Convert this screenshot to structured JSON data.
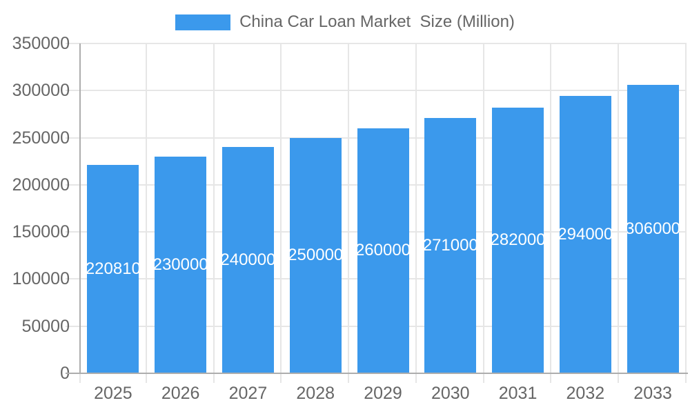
{
  "chart_data": {
    "type": "bar",
    "title": "China Car Loan Market  Size (Million)",
    "categories": [
      "2025",
      "2026",
      "2027",
      "2028",
      "2029",
      "2030",
      "2031",
      "2032",
      "2033"
    ],
    "series": [
      {
        "name": "China Car Loan Market  Size (Million)",
        "values": [
          220810,
          230000,
          240000,
          250000,
          260000,
          271000,
          282000,
          294000,
          306000
        ],
        "value_labels": [
          "220810",
          "230000",
          "240000",
          "250000",
          "260000",
          "271000",
          "282000",
          "294000",
          "306000"
        ]
      }
    ],
    "xlabel": "",
    "ylabel": "",
    "ylim": [
      0,
      350000
    ],
    "ytick_step": 50000,
    "yticks": [
      0,
      50000,
      100000,
      150000,
      200000,
      250000,
      300000,
      350000
    ],
    "ytick_labels": [
      "0",
      "50000",
      "100000",
      "150000",
      "200000",
      "250000",
      "300000",
      "350000"
    ],
    "grid": true,
    "legend_position": "top",
    "colors": {
      "bar": "#3b99ec",
      "bar_value_text": "#ffffff",
      "axis_text": "#666666",
      "gridline": "#e6e6e6",
      "axis_line": "#adadad",
      "background": "#ffffff"
    }
  }
}
